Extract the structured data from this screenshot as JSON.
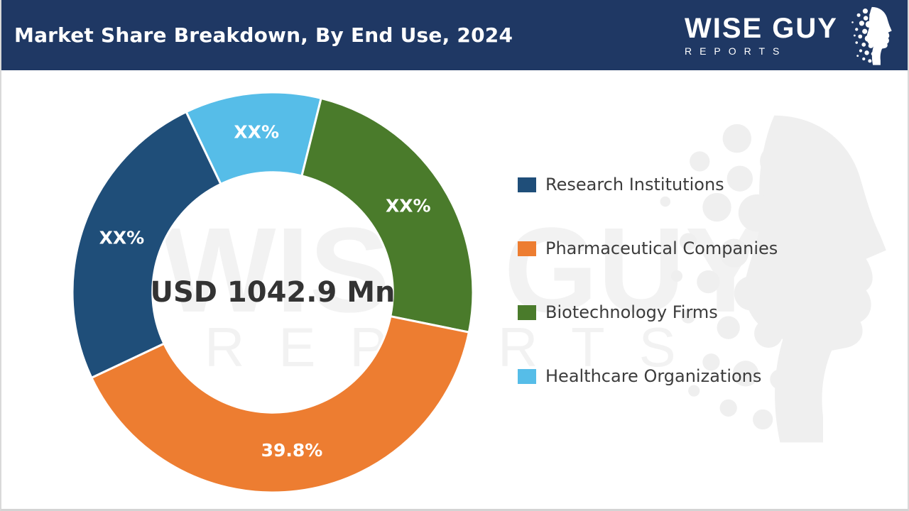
{
  "header": {
    "title": "Market Share Breakdown, By End Use, 2024",
    "bg_color": "#1F3864",
    "logo": {
      "brand": "WISE GUY",
      "sub": "REPORTS"
    }
  },
  "watermark": {
    "text": "WISE GUY",
    "sub": "REPORTS"
  },
  "chart_data": {
    "type": "pie",
    "subtype": "donut",
    "title": "Market Share Breakdown, By End Use, 2024",
    "center_label": "USD 1042.9 Mn",
    "legend_position": "right",
    "inner_radius_ratio": 0.6,
    "start_angle_deg_clockwise_from_top": 334.4,
    "slices_clockwise": [
      {
        "name": "Healthcare Organizations",
        "value_pct": 11.0,
        "label": "XX%",
        "color": "#56BDE8"
      },
      {
        "name": "Biotechnology Firms",
        "value_pct": 24.3,
        "label": "XX%",
        "color": "#4A7B2B"
      },
      {
        "name": "Pharmaceutical Companies",
        "value_pct": 39.8,
        "label": "39.8%",
        "color": "#ED7D31"
      },
      {
        "name": "Research Institutions",
        "value_pct": 24.9,
        "label": "XX%",
        "color": "#1F4E79"
      }
    ]
  },
  "legend": {
    "items": [
      {
        "label": "Research Institutions",
        "color": "#1F4E79"
      },
      {
        "label": "Pharmaceutical Companies",
        "color": "#ED7D31"
      },
      {
        "label": "Biotechnology Firms",
        "color": "#4A7B2B"
      },
      {
        "label": "Healthcare Organizations",
        "color": "#56BDE8"
      }
    ]
  }
}
